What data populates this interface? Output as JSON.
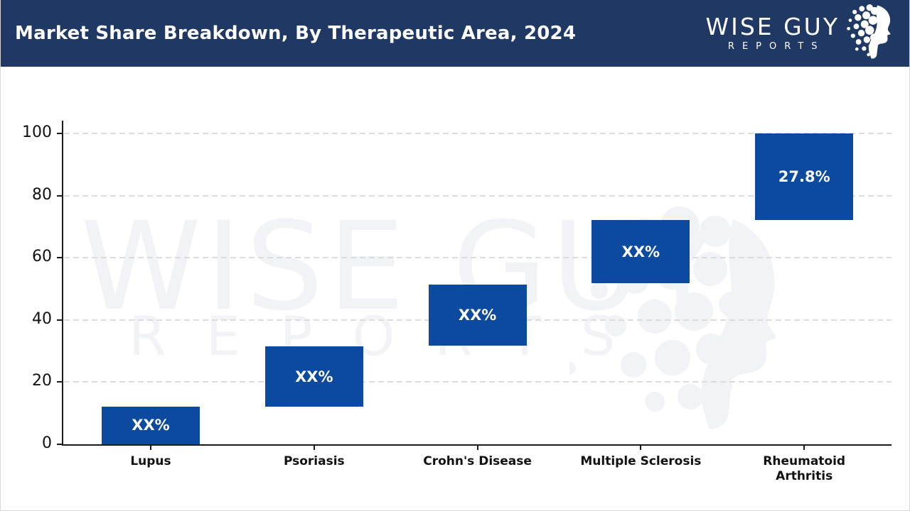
{
  "header": {
    "title": "Market Share Breakdown, By Therapeutic Area, 2024",
    "logo": {
      "line1": "WISE GUY",
      "line2": "REPORTS"
    }
  },
  "watermark": {
    "line1": "WISE GUY",
    "line2": "REPORTS"
  },
  "colors": {
    "header_bg": "#203864",
    "bar": "#0b4a9e",
    "grid": "#dcdcdc",
    "axis": "#1a1a1a",
    "watermark": "#f2f3f6"
  },
  "chart_data": {
    "type": "bar",
    "subtype": "floating-waterfall",
    "title": "Market Share Breakdown, By Therapeutic Area, 2024",
    "categories": [
      "Lupus",
      "Psoriasis",
      "Crohn's Disease",
      "Multiple Sclerosis",
      "Rheumatoid Arthritis"
    ],
    "categories_display": [
      "Lupus",
      "Psoriasis",
      "Crohn's Disease",
      "Multiple Sclerosis",
      "Rheumatoid\nArthritis"
    ],
    "segments": [
      {
        "category": "Lupus",
        "start": 0,
        "end": 12.0,
        "label": "XX%"
      },
      {
        "category": "Psoriasis",
        "start": 12.0,
        "end": 31.4,
        "label": "XX%"
      },
      {
        "category": "Crohn's Disease",
        "start": 31.6,
        "end": 51.4,
        "label": "XX%"
      },
      {
        "category": "Multiple Sclerosis",
        "start": 51.7,
        "end": 72.1,
        "label": "XX%"
      },
      {
        "category": "Rheumatoid Arthritis",
        "start": 72.2,
        "end": 100.0,
        "label": "27.8%"
      }
    ],
    "ylim": [
      0,
      100
    ],
    "yticks": [
      0,
      20,
      40,
      60,
      80,
      100
    ],
    "xlabel": "",
    "ylabel": "",
    "grid": "horizontal-dashed",
    "legend": null
  }
}
